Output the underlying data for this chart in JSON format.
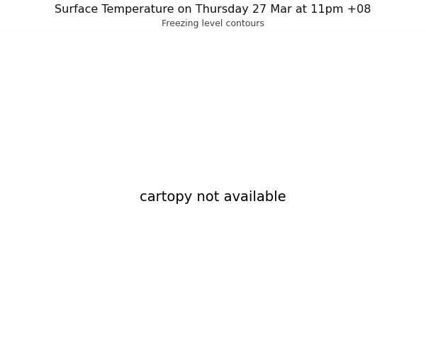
{
  "title": "Surface Temperature on Thursday 27 Mar at 11pm +08",
  "subtitle": "Freezing level contours",
  "title_fontsize": 11.5,
  "subtitle_fontsize": 9,
  "fig_width": 6.01,
  "fig_height": 5.14,
  "dpi": 100,
  "header_bg": "#f2f2f2",
  "ocean_color": "#c8cfe8",
  "lon_min": 95,
  "lon_max": 132,
  "lat_min": -11,
  "lat_max": 25,
  "contour_color": "#cc0000",
  "contour_lw": 1.0,
  "label_fontsize": 6.5,
  "label_color": "#cc0000",
  "border_color": "#000000",
  "land_cmap_colors": [
    "#e8c840",
    "#d4881a",
    "#c06010",
    "#a84808",
    "#902000"
  ],
  "hot_color": "#cc1111",
  "very_hot_color": "#dd0000",
  "warm_color": "#d07818",
  "yellow_color": "#d4b820"
}
